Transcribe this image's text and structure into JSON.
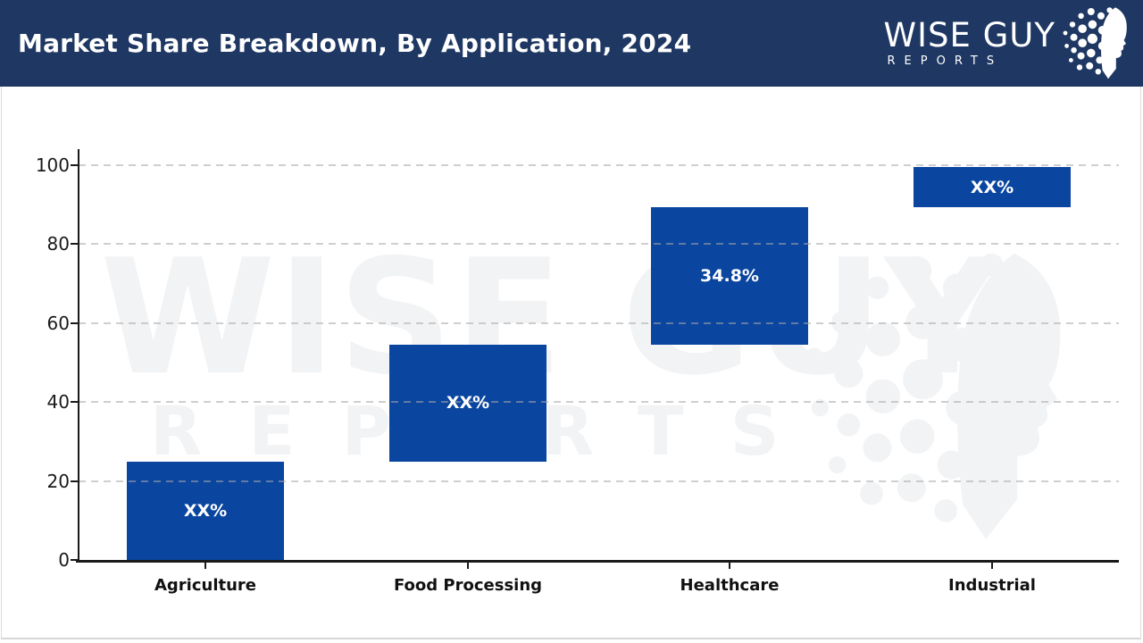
{
  "header": {
    "title": "Market Share Breakdown, By Application, 2024",
    "logo": {
      "line1": "WISE GUY",
      "line2": "REPORTS"
    }
  },
  "watermark": {
    "line1": "WISE GUY",
    "line2": "REPORTS"
  },
  "chart_data": {
    "type": "bar",
    "subtype": "waterfall",
    "title": "Market Share Breakdown, By Application, 2024",
    "categories": [
      "Agriculture",
      "Food Processing",
      "Healthcare",
      "Industrial"
    ],
    "segments": [
      {
        "category": "Agriculture",
        "start": 0,
        "end": 24.9,
        "value": 24.9,
        "label": "XX%"
      },
      {
        "category": "Food Processing",
        "start": 24.9,
        "end": 54.6,
        "value": 29.7,
        "label": "XX%"
      },
      {
        "category": "Healthcare",
        "start": 54.6,
        "end": 89.4,
        "value": 34.8,
        "label": "34.8%"
      },
      {
        "category": "Industrial",
        "start": 89.4,
        "end": 99.5,
        "value": 10.1,
        "label": "XX%"
      }
    ],
    "y_ticks": [
      0,
      20,
      40,
      60,
      80,
      100
    ],
    "ylim": [
      0,
      104
    ],
    "xlabel": "",
    "ylabel": "",
    "grid": "dashed-horizontal-over-bars",
    "legend": "none"
  },
  "colors": {
    "header_bg": "#1F3863",
    "bar": "#0A45A0",
    "grid": "#A8A8A8",
    "watermark": "#F2F3F5",
    "axis": "#1A1A1A"
  }
}
